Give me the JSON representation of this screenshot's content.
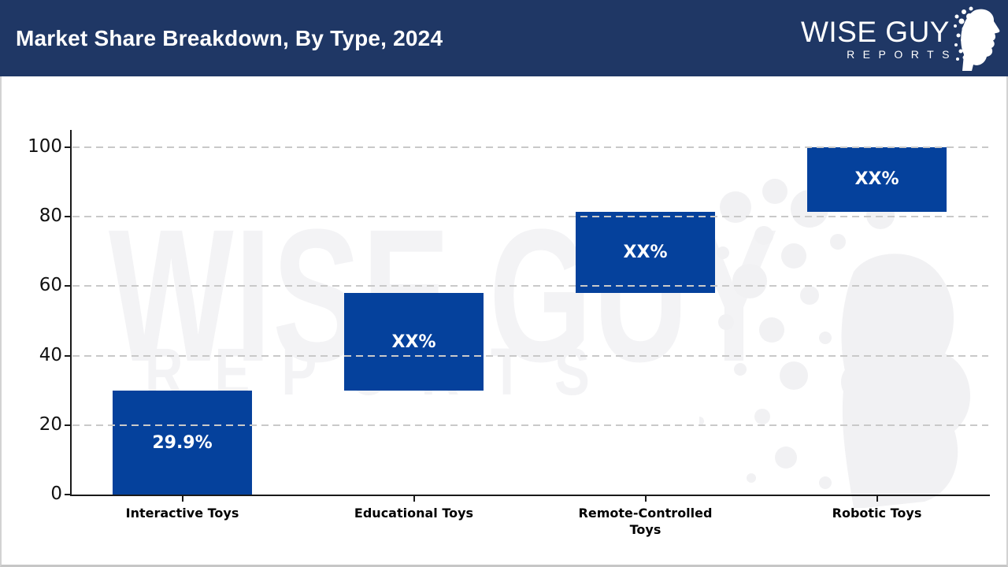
{
  "header": {
    "title": "Market Share Breakdown, By Type, 2024",
    "logo": {
      "line1": "WISE GUY",
      "line2": "REPORTS"
    }
  },
  "watermark": {
    "line1": "WISE GUY",
    "line2": "REPORTS"
  },
  "colors": {
    "header_bg": "#1F3765",
    "bar": "#05419C",
    "bar_label": "#FFFFFF",
    "grid": "#C9C9C9",
    "axis": "#1A1A1A",
    "tick_label": "#111111",
    "watermark": "#F3F3F5",
    "watermark_dots": "#F1F1F3",
    "page_border": "#C6C6C6"
  },
  "chart_data": {
    "type": "bar",
    "subtype": "waterfall",
    "title": "Market Share Breakdown, By Type, 2024",
    "categories": [
      "Interactive Toys",
      "Educational Toys",
      "Remote-Controlled Toys",
      "Robotic Toys"
    ],
    "segments": [
      {
        "category": "Interactive Toys",
        "start": 0,
        "end": 29.9,
        "label": "29.9%"
      },
      {
        "category": "Educational Toys",
        "start": 29.9,
        "end": 58,
        "label": "XX%"
      },
      {
        "category": "Remote-Controlled Toys",
        "start": 58,
        "end": 81.5,
        "label": "XX%"
      },
      {
        "category": "Robotic Toys",
        "start": 81.5,
        "end": 100,
        "label": "XX%"
      }
    ],
    "yticks": [
      0,
      20,
      40,
      60,
      80,
      100
    ],
    "ylim": [
      0,
      105
    ],
    "xlabel": "",
    "ylabel": "",
    "grid": "horizontal-dashed-over-bars",
    "legend": "none"
  }
}
